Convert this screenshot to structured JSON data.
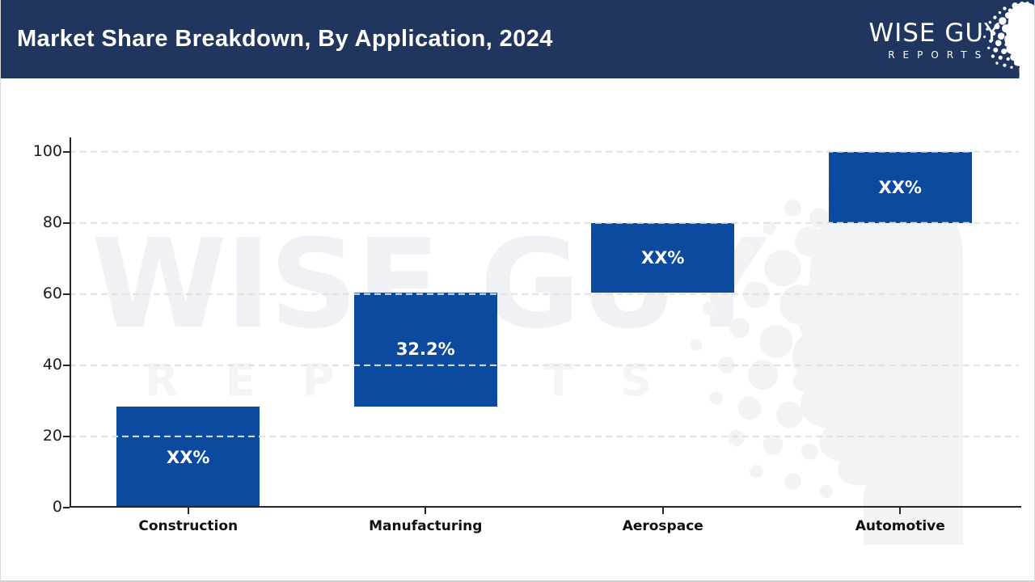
{
  "header": {
    "title": "Market Share Breakdown, By Application, 2024",
    "bg_color": "#21365f",
    "logo": {
      "line1": "WISE GUY",
      "line2": "REPORTS"
    }
  },
  "watermark": {
    "line1": "WISE GUY",
    "line2": "REPORTS"
  },
  "chart_data": {
    "type": "bar",
    "subtype": "waterfall-floating-bars",
    "title": "Market Share Breakdown, By Application, 2024",
    "categories": [
      "Construction",
      "Manufacturing",
      "Aerospace",
      "Automotive"
    ],
    "segments": [
      {
        "category": "Construction",
        "start": 0,
        "end": 28.3,
        "label": "XX%"
      },
      {
        "category": "Manufacturing",
        "start": 28.3,
        "end": 60.5,
        "label": "32.2%"
      },
      {
        "category": "Aerospace",
        "start": 60.5,
        "end": 80,
        "label": "XX%"
      },
      {
        "category": "Automotive",
        "start": 80,
        "end": 100,
        "label": "XX%"
      }
    ],
    "y_ticks": [
      0,
      20,
      40,
      60,
      80,
      100
    ],
    "ylim": [
      0,
      104
    ],
    "xlabel": "",
    "ylabel": "",
    "legend": "none",
    "grid": "horizontal dashed, drawn above bars",
    "grid_color": "#e1e1e1",
    "bar_color": "#0b4a9e",
    "bar_label_color": "#ffffff",
    "axis_color": "#262626"
  }
}
